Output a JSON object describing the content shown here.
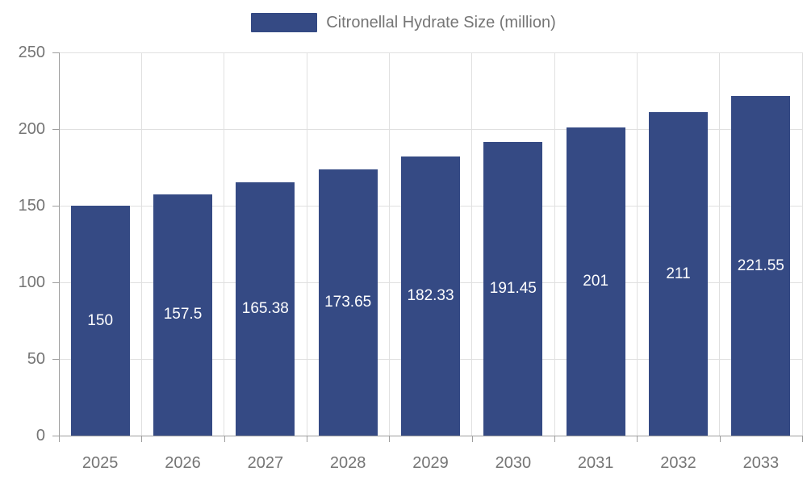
{
  "chart_data": {
    "type": "bar",
    "legend": "Citronellal Hydrate Size (million)",
    "categories": [
      "2025",
      "2026",
      "2027",
      "2028",
      "2029",
      "2030",
      "2031",
      "2032",
      "2033"
    ],
    "values": [
      150,
      157.5,
      165.38,
      173.65,
      182.33,
      191.45,
      201,
      211,
      221.55
    ],
    "value_labels": [
      "150",
      "157.5",
      "165.38",
      "173.65",
      "182.33",
      "191.45",
      "201",
      "211",
      "221.55"
    ],
    "title": "",
    "xlabel": "",
    "ylabel": "",
    "ylim": [
      0,
      250
    ],
    "yticks": [
      0,
      50,
      100,
      150,
      200,
      250
    ],
    "grid": true,
    "legend_position": "top",
    "colors": {
      "bar": "#354a84",
      "bar_label": "#ffffff",
      "axis_text": "#757575",
      "grid_line": "#e0e0e0",
      "axis_line": "#9e9e9e"
    }
  }
}
